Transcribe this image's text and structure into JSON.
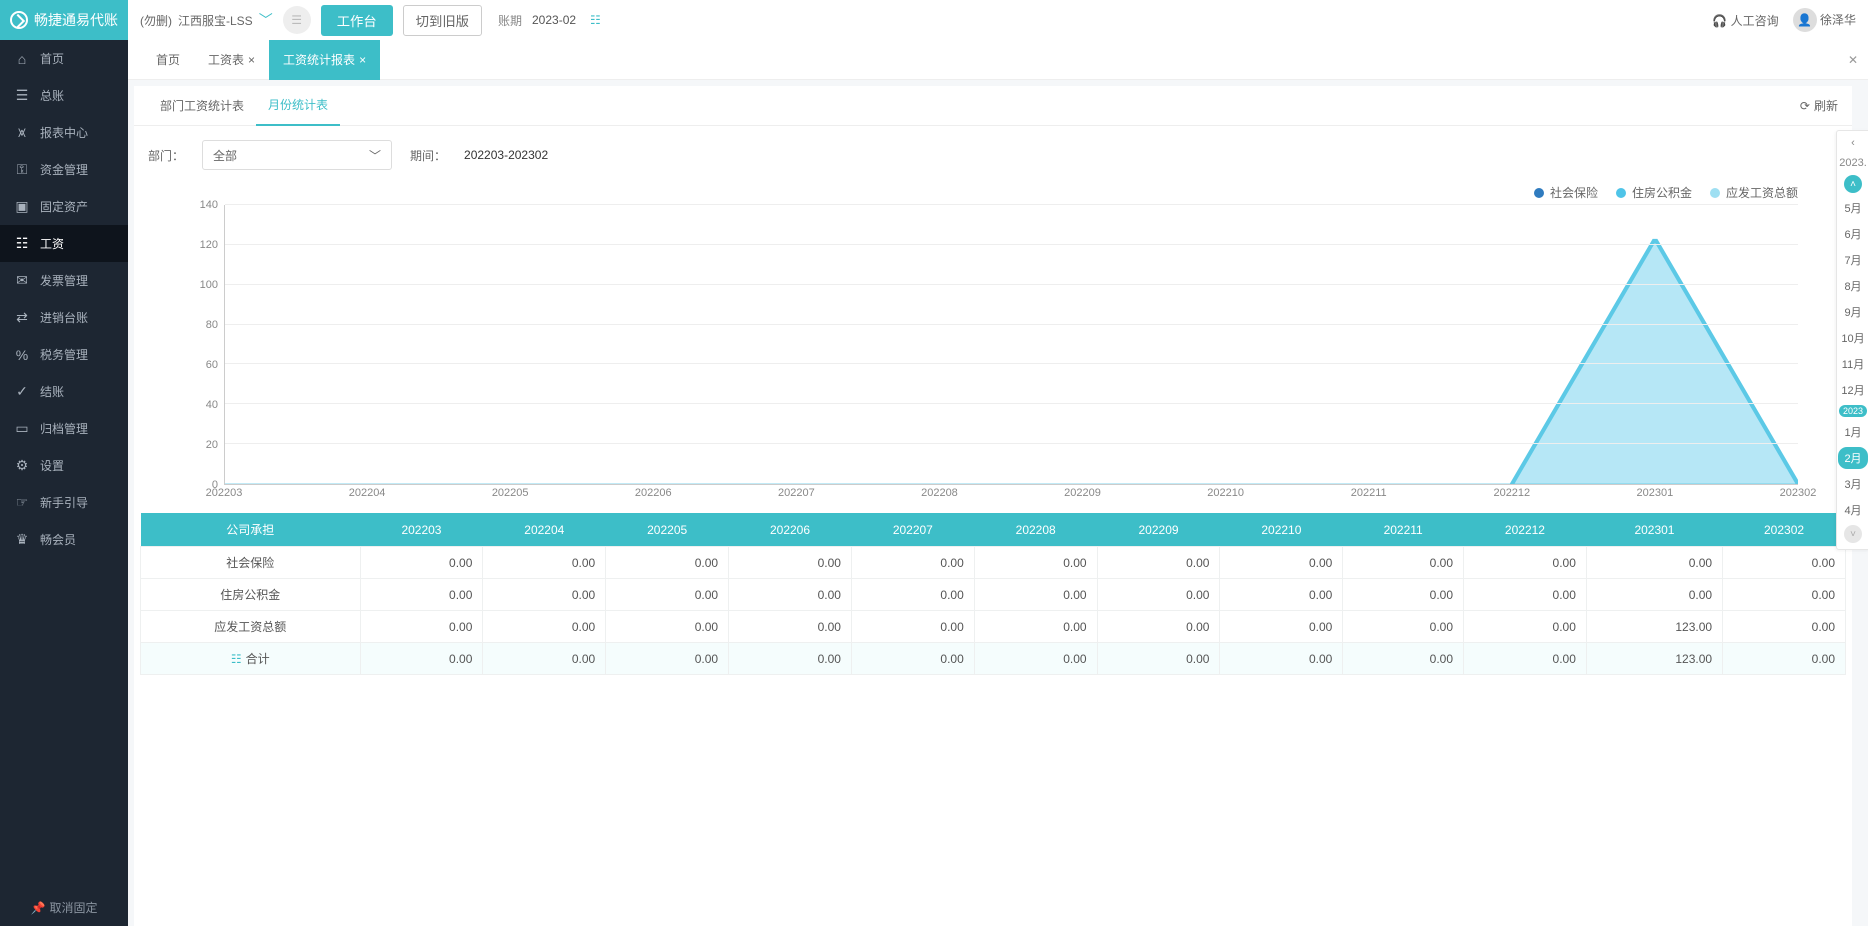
{
  "brand": "畅捷通易代账",
  "header": {
    "account_prefix": "(勿删)",
    "account_name": "江西服宝-LSS",
    "btn_workspace": "工作台",
    "btn_oldver": "切到旧版",
    "period_label": "账期",
    "period_value": "2023-02",
    "consult": "人工咨询",
    "user_name": "徐泽华"
  },
  "sidebar": {
    "items": [
      {
        "icon": "⌂",
        "label": "首页"
      },
      {
        "icon": "☰",
        "label": "总账"
      },
      {
        "icon": "⩙",
        "label": "报表中心"
      },
      {
        "icon": "⚿",
        "label": "资金管理"
      },
      {
        "icon": "▣",
        "label": "固定资产"
      },
      {
        "icon": "☷",
        "label": "工资"
      },
      {
        "icon": "✉",
        "label": "发票管理"
      },
      {
        "icon": "⇄",
        "label": "进销台账"
      },
      {
        "icon": "%",
        "label": "税务管理"
      },
      {
        "icon": "✓",
        "label": "结账"
      },
      {
        "icon": "▭",
        "label": "归档管理"
      },
      {
        "icon": "⚙",
        "label": "设置"
      },
      {
        "icon": "☞",
        "label": "新手引导"
      },
      {
        "icon": "♛",
        "label": "畅会员"
      }
    ],
    "active_index": 5,
    "footer": "取消固定"
  },
  "tabs": {
    "items": [
      {
        "label": "首页",
        "closable": false
      },
      {
        "label": "工资表",
        "closable": true
      },
      {
        "label": "工资统计报表",
        "closable": true
      }
    ],
    "active_index": 2
  },
  "subtabs": {
    "items": [
      "部门工资统计表",
      "月份统计表"
    ],
    "active_index": 1,
    "refresh": "刷新"
  },
  "filters": {
    "dept_label": "部门：",
    "dept_value": "全部",
    "period_label": "期间：",
    "period_value": "202203-202302"
  },
  "chart": {
    "type": "area",
    "legend": [
      {
        "label": "社会保险",
        "color": "#2f7bbf"
      },
      {
        "label": "住房公积金",
        "color": "#4fc4e8"
      },
      {
        "label": "应发工资总额",
        "color": "#9edff2"
      }
    ],
    "y_ticks": [
      0,
      20,
      40,
      60,
      80,
      100,
      120,
      140
    ],
    "ylim": [
      0,
      140
    ],
    "x_labels": [
      "202203",
      "202204",
      "202205",
      "202206",
      "202207",
      "202208",
      "202209",
      "202210",
      "202211",
      "202212",
      "202301",
      "202302"
    ],
    "series_yingfa": [
      0,
      0,
      0,
      0,
      0,
      0,
      0,
      0,
      0,
      0,
      123,
      0
    ],
    "fill_color": "#a9e3f4",
    "stroke_color": "#5cc9e6",
    "grid_color": "#eeeeee",
    "axis_color": "#cccccc",
    "label_color": "#888888",
    "background_color": "#ffffff",
    "label_fontsize": 11
  },
  "table": {
    "header_first": "公司承担",
    "columns": [
      "202203",
      "202204",
      "202205",
      "202206",
      "202207",
      "202208",
      "202209",
      "202210",
      "202211",
      "202212",
      "202301",
      "202302"
    ],
    "rows": [
      {
        "label": "社会保险",
        "vals": [
          "0.00",
          "0.00",
          "0.00",
          "0.00",
          "0.00",
          "0.00",
          "0.00",
          "0.00",
          "0.00",
          "0.00",
          "0.00",
          "0.00"
        ]
      },
      {
        "label": "住房公积金",
        "vals": [
          "0.00",
          "0.00",
          "0.00",
          "0.00",
          "0.00",
          "0.00",
          "0.00",
          "0.00",
          "0.00",
          "0.00",
          "0.00",
          "0.00"
        ]
      },
      {
        "label": "应发工资总额",
        "vals": [
          "0.00",
          "0.00",
          "0.00",
          "0.00",
          "0.00",
          "0.00",
          "0.00",
          "0.00",
          "0.00",
          "0.00",
          "123.00",
          "0.00"
        ]
      }
    ],
    "total_label": "合计",
    "total_vals": [
      "0.00",
      "0.00",
      "0.00",
      "0.00",
      "0.00",
      "0.00",
      "0.00",
      "0.00",
      "0.00",
      "0.00",
      "123.00",
      "0.00"
    ],
    "header_bg": "#3dbec8",
    "header_fg": "#ffffff"
  },
  "month_strip": {
    "year_top": "2023.",
    "items": [
      "5月",
      "6月",
      "7月",
      "8月",
      "9月",
      "10月",
      "11月",
      "12月",
      "1月",
      "2月",
      "3月",
      "4月"
    ],
    "badge_year": "2023",
    "badge_before_index": 8,
    "active_index": 9
  }
}
